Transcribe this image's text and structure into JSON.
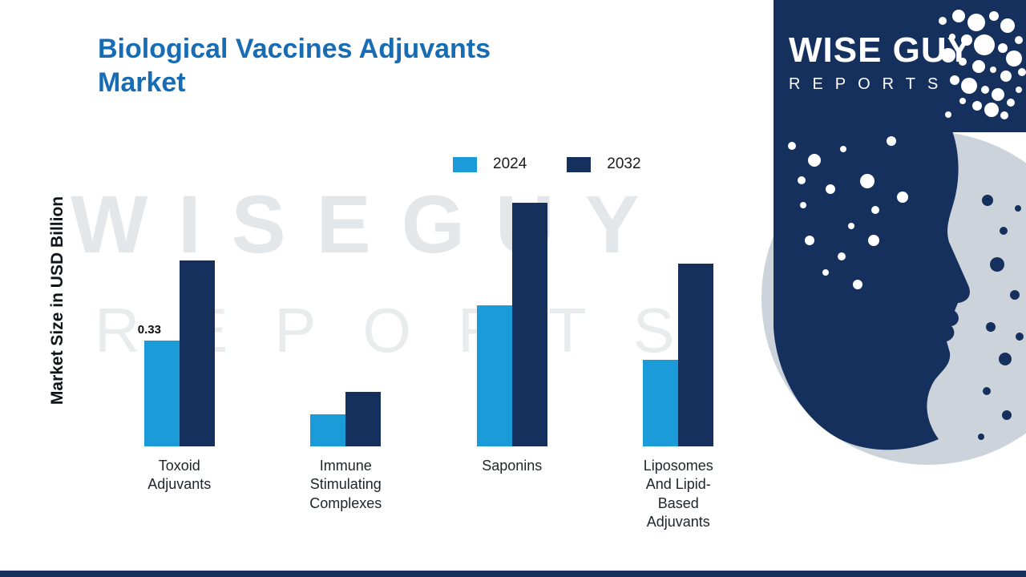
{
  "page": {
    "title": "Biological Vaccines Adjuvants Market"
  },
  "logo": {
    "line1": "WISE GUY",
    "line2": "REPORTS"
  },
  "watermark": {
    "line1": "WISEGUY",
    "line2": "REPORTS"
  },
  "colors": {
    "title_blue": "#176cb4",
    "panel_navy": "#16305e",
    "bar_2024_blue": "#1b9cd8",
    "bar_2032_navy": "#16305e",
    "watermark_gray": "#e3e7ea"
  },
  "chart_data": {
    "type": "bar",
    "title": "Biological Vaccines Adjuvants Market",
    "xlabel": "",
    "ylabel": "Market Size in USD Billion",
    "categories": [
      "Toxoid Adjuvants",
      "Immune Stimulating Complexes",
      "Saponins",
      "Liposomes And Lipid-Based Adjuvants"
    ],
    "series": [
      {
        "name": "2024",
        "color": "#1b9cd8",
        "values": [
          0.33,
          0.1,
          0.44,
          0.27
        ]
      },
      {
        "name": "2032",
        "color": "#16305e",
        "values": [
          0.58,
          0.17,
          0.76,
          0.57
        ]
      }
    ],
    "ylim": [
      0,
      0.85
    ],
    "grid": false,
    "legend_position": "top",
    "annotations": [
      {
        "category_index": 0,
        "series_index": 0,
        "text": "0.33"
      }
    ]
  }
}
